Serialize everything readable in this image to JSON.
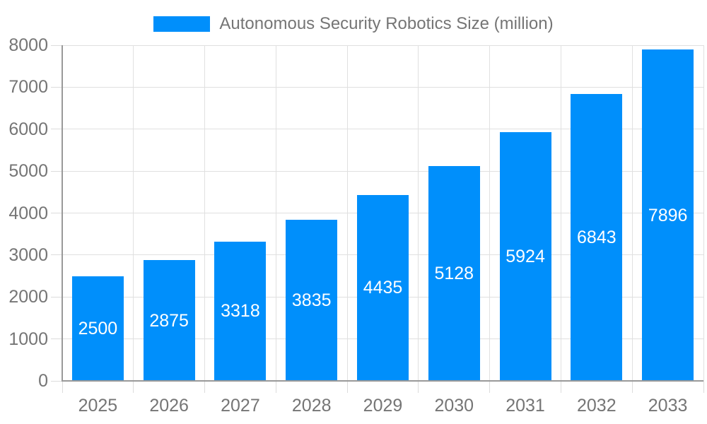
{
  "chart_data": {
    "type": "bar",
    "title": "",
    "legend": {
      "label": "Autonomous Security Robotics Size (million)",
      "position": "top-center"
    },
    "categories": [
      "2025",
      "2026",
      "2027",
      "2028",
      "2029",
      "2030",
      "2031",
      "2032",
      "2033"
    ],
    "series": [
      {
        "name": "Autonomous Security Robotics Size (million)",
        "values": [
          2500,
          2875,
          3318,
          3835,
          4435,
          5128,
          5924,
          6843,
          7896
        ]
      }
    ],
    "xlabel": "",
    "ylabel": "",
    "ylim": [
      0,
      8000
    ],
    "yticks": [
      0,
      1000,
      2000,
      3000,
      4000,
      5000,
      6000,
      7000,
      8000
    ],
    "grid": true,
    "value_labels": "inside-center",
    "colors": {
      "bar": "#008FFB",
      "value_label": "#FFFFFF",
      "axis_text": "#757575",
      "grid_line": "#E0E0E0",
      "axis_line": "#999999",
      "background": "#FFFFFF"
    }
  }
}
